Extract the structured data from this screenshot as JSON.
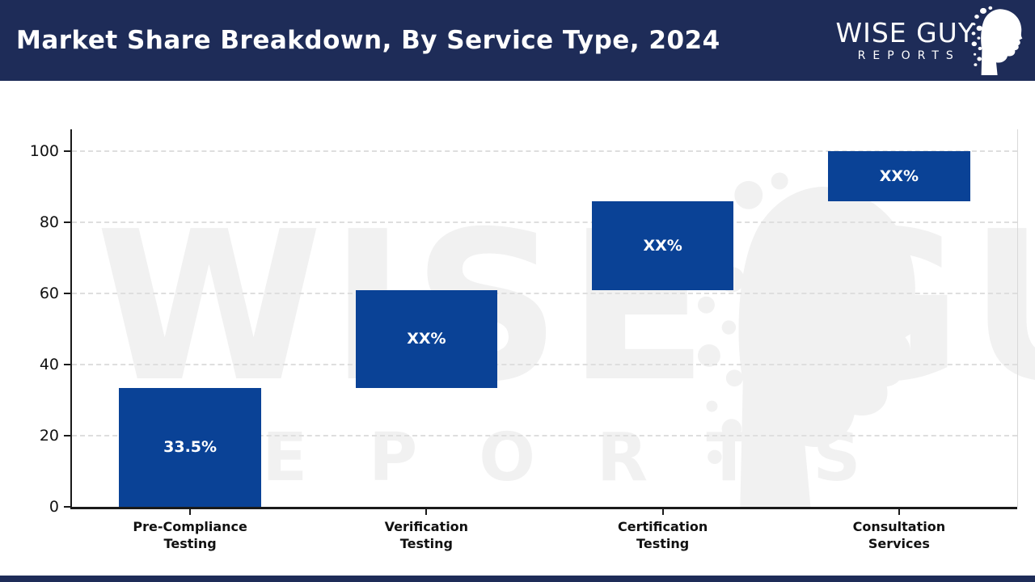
{
  "header": {
    "title": "Market Share Breakdown, By Service Type, 2024",
    "brand": {
      "name": "WISE GUY",
      "sub": "REPORTS"
    }
  },
  "watermark": {
    "line1": "WISE GUY",
    "line2": "REPORTS"
  },
  "colors": {
    "navy": "#1e2c58",
    "bar": "#0a4296",
    "grid": "#dedede",
    "axis": "#1a1a1a",
    "watermark": "#f1f1f1"
  },
  "chart_data": {
    "type": "bar",
    "subtype": "waterfall",
    "title": "Market Share Breakdown, By Service Type, 2024",
    "categories": [
      {
        "line1": "Pre-Compliance",
        "line2": "Testing"
      },
      {
        "line1": "Verification",
        "line2": "Testing"
      },
      {
        "line1": "Certification",
        "line2": "Testing"
      },
      {
        "line1": "Consultation",
        "line2": "Services"
      }
    ],
    "segments": [
      {
        "start": 0,
        "end": 33.5,
        "label": "33.5%"
      },
      {
        "start": 33.5,
        "end": 61,
        "label": "XX%"
      },
      {
        "start": 61,
        "end": 86,
        "label": "XX%"
      },
      {
        "start": 86,
        "end": 100,
        "label": "XX%"
      }
    ],
    "ylim": [
      0,
      100
    ],
    "yticks": [
      0,
      20,
      40,
      60,
      80,
      100
    ],
    "grid": "dashed horizontal",
    "legend": "none",
    "bar_color": "#0a4296",
    "bar_label_color": "#ffffff"
  }
}
